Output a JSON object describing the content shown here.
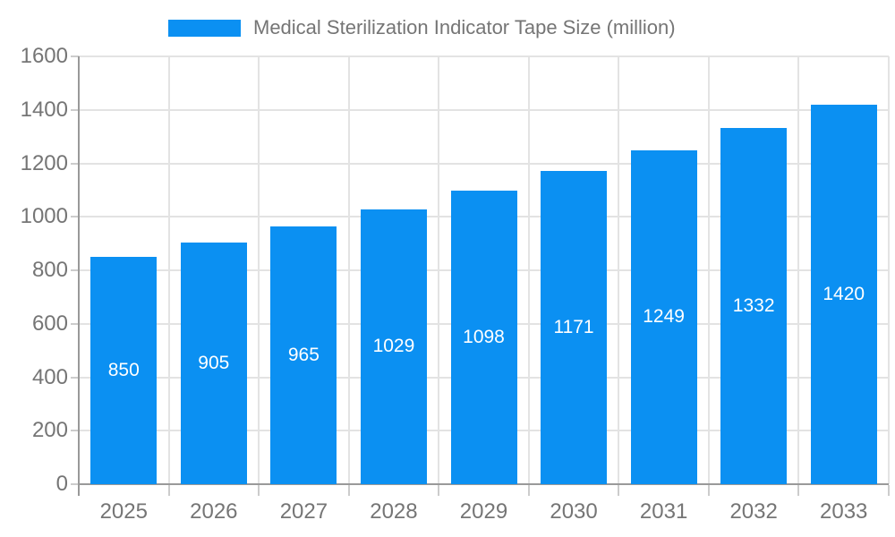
{
  "legend": {
    "label": "Medical Sterilization Indicator Tape Size (million)"
  },
  "colors": {
    "bar": "#0b90f2",
    "grid": "#e3e3e3",
    "axis": "#999999",
    "tick": "#cccccc",
    "text": "#757575",
    "value_text": "#ffffff",
    "background": "#ffffff"
  },
  "chart_data": {
    "type": "bar",
    "title": "Medical Sterilization Indicator Tape Size (million)",
    "categories": [
      "2025",
      "2026",
      "2027",
      "2028",
      "2029",
      "2030",
      "2031",
      "2032",
      "2033"
    ],
    "values": [
      850,
      905,
      965,
      1029,
      1098,
      1171,
      1249,
      1332,
      1420
    ],
    "xlabel": "",
    "ylabel": "",
    "ylim": [
      0,
      1600
    ],
    "yticks": [
      0,
      200,
      400,
      600,
      800,
      1000,
      1200,
      1400,
      1600
    ],
    "grid": true,
    "legend_position": "top",
    "value_label_position": "inside-middle"
  }
}
